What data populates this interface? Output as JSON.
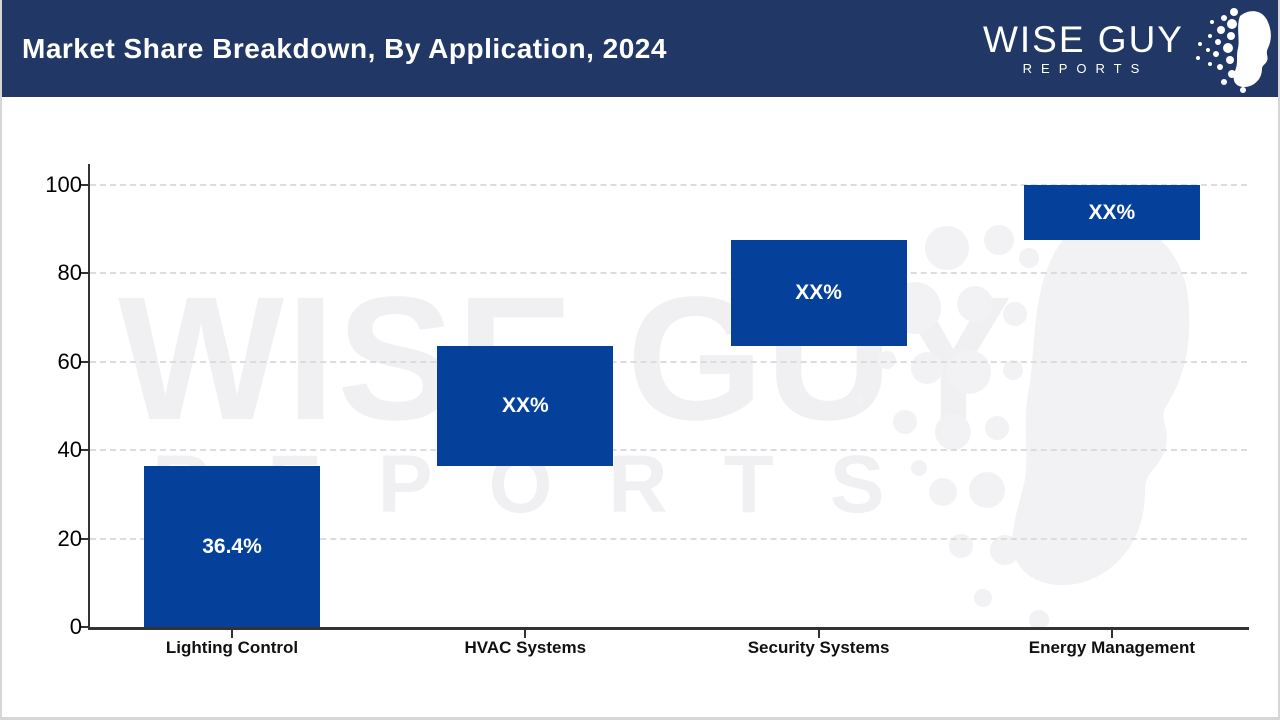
{
  "header": {
    "title": "Market Share Breakdown, By Application, 2024",
    "logo": {
      "line1": "WISE GUY",
      "line2": "REPORTS"
    }
  },
  "watermark": {
    "line1": "WISE GUY",
    "line2": "REPORTS"
  },
  "colors": {
    "header_bg": "#213765",
    "bar": "#05419b",
    "grid": "#dcdcdc",
    "axis": "#333333",
    "bar_label": "#ffffff",
    "watermark": "#f0f0f3",
    "page_border": "#d6d6d6"
  },
  "chart_data": {
    "type": "bar",
    "subtype": "waterfall",
    "title": "Market Share Breakdown, By Application, 2024",
    "categories": [
      "Lighting Control",
      "HVAC Systems",
      "Security Systems",
      "Energy Management"
    ],
    "segments": [
      {
        "category": "Lighting Control",
        "start": 0,
        "end": 36.4,
        "label": "36.4%"
      },
      {
        "category": "HVAC Systems",
        "start": 36.4,
        "end": 63.5,
        "label": "XX%"
      },
      {
        "category": "Security Systems",
        "start": 63.5,
        "end": 87.5,
        "label": "XX%"
      },
      {
        "category": "Energy Management",
        "start": 87.5,
        "end": 100,
        "label": "XX%"
      }
    ],
    "yticks": [
      0,
      20,
      40,
      60,
      80,
      100
    ],
    "ylim": [
      0,
      105
    ],
    "xlabel": "",
    "ylabel": "",
    "grid": "horizontal-dashed",
    "legend": "none"
  }
}
